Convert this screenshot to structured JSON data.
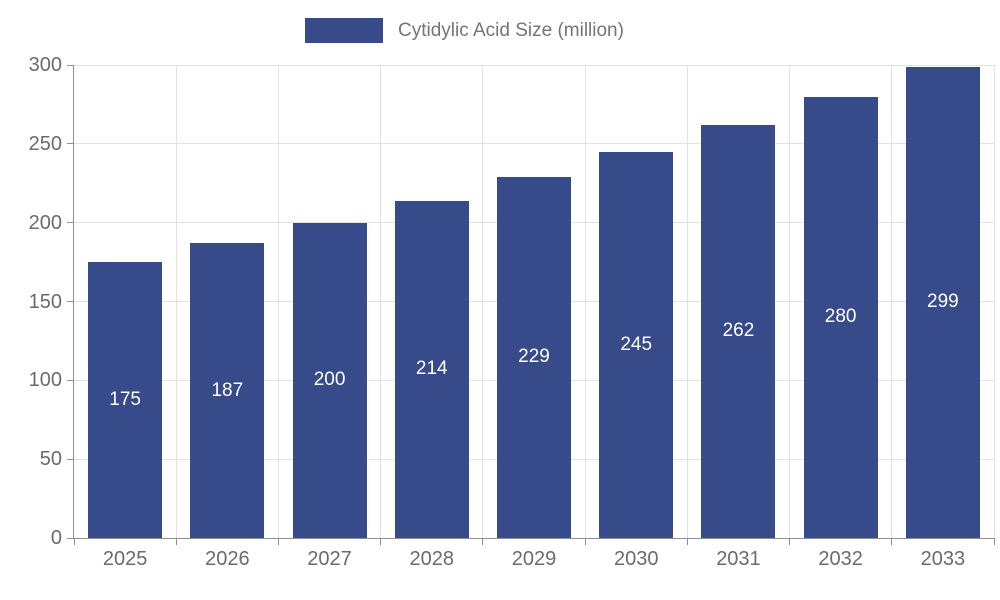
{
  "legend": {
    "label": "Cytidylic Acid Size (million)"
  },
  "colors": {
    "bar": "#374a8a",
    "grid": "#e2e2e2",
    "axis": "#8f8f8f",
    "tick_label": "#6b6b6b",
    "value_label": "#ffffff",
    "legend_text": "#757575",
    "background": "#ffffff"
  },
  "chart_data": {
    "type": "bar",
    "title": "",
    "xlabel": "",
    "ylabel": "",
    "categories": [
      "2025",
      "2026",
      "2027",
      "2028",
      "2029",
      "2030",
      "2031",
      "2032",
      "2033"
    ],
    "values": [
      175,
      187,
      200,
      214,
      229,
      245,
      262,
      280,
      299
    ],
    "series_name": "Cytidylic Acid Size (million)",
    "ylim": [
      0,
      300
    ],
    "yticks": [
      0,
      50,
      100,
      150,
      200,
      250,
      300
    ],
    "grid": true,
    "legend_position": "top-center",
    "value_label_position": "inside-center"
  }
}
